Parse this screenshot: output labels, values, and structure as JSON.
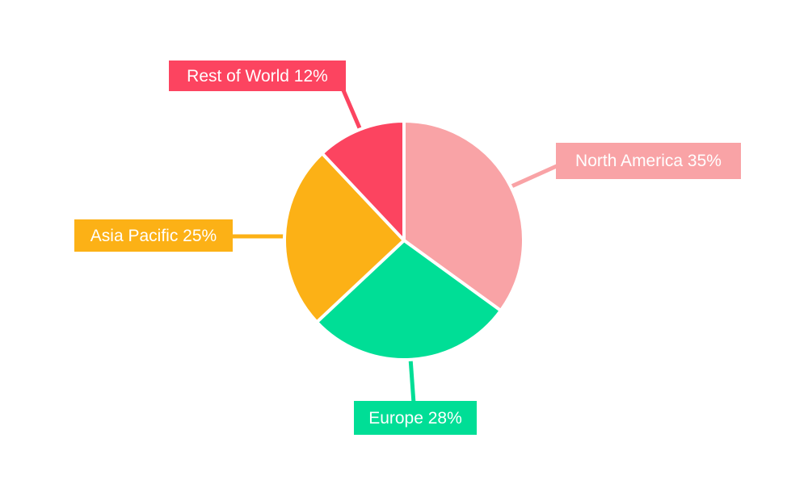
{
  "chart_data": {
    "type": "pie",
    "title": "",
    "categories": [
      "North America",
      "Europe",
      "Asia Pacific",
      "Rest of World"
    ],
    "values": [
      35,
      28,
      25,
      12
    ],
    "unit": "%",
    "labels": [
      "North America 35%",
      "Europe 28%",
      "Asia Pacific 25%",
      "Rest of World 12%"
    ],
    "colors": [
      "#F9A3A6",
      "#00DE96",
      "#FCB116",
      "#FC4460"
    ],
    "start_angle": "top",
    "direction": "clockwise",
    "slice_gap_color": "#FFFFFF",
    "label_text_color": "#FFFFFF",
    "label_style": "colored callout boxes with leader lines",
    "legend_position": "none",
    "background_color": "#FFFFFF"
  }
}
